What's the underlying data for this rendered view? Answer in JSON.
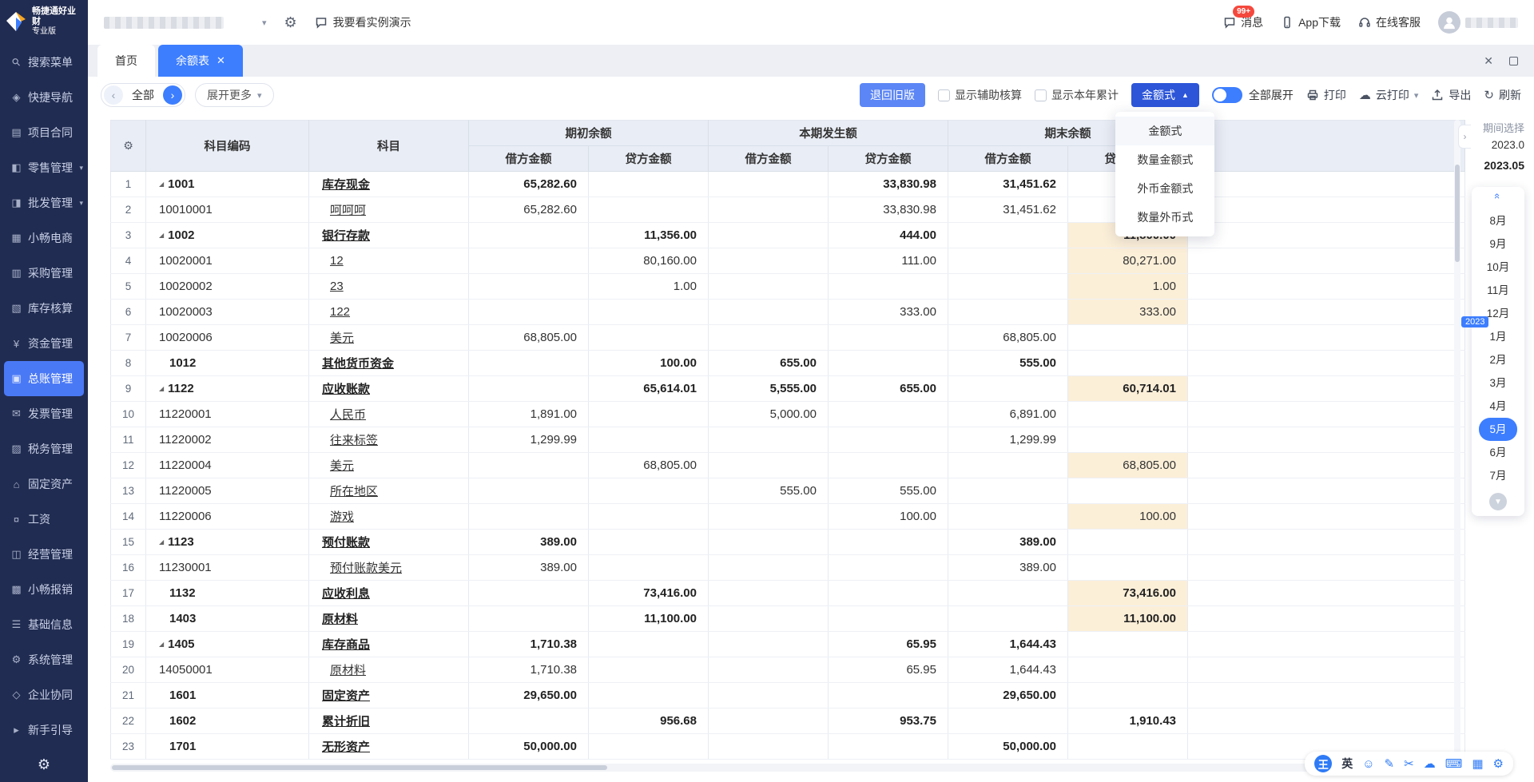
{
  "brand": {
    "name": "畅捷通好业财",
    "edition": "专业版"
  },
  "topbar": {
    "demo": "我要看实例演示",
    "messages": "消息",
    "messages_badge": "99+",
    "app_download": "App下载",
    "support": "在线客服"
  },
  "tabs": {
    "home": "首页",
    "current": "余额表"
  },
  "sidebar": {
    "items": [
      {
        "id": "search-menu",
        "label": "搜索菜单"
      },
      {
        "id": "quick-nav",
        "label": "快捷导航"
      },
      {
        "id": "project-contract",
        "label": "项目合同"
      },
      {
        "id": "retail",
        "label": "零售管理",
        "expandable": true
      },
      {
        "id": "wholesale",
        "label": "批发管理",
        "expandable": true
      },
      {
        "id": "ecommerce",
        "label": "小畅电商"
      },
      {
        "id": "purchase",
        "label": "采购管理"
      },
      {
        "id": "inventory",
        "label": "库存核算"
      },
      {
        "id": "funds",
        "label": "资金管理"
      },
      {
        "id": "general-ledger",
        "label": "总账管理",
        "active": true
      },
      {
        "id": "invoice",
        "label": "发票管理"
      },
      {
        "id": "tax",
        "label": "税务管理"
      },
      {
        "id": "fixed-assets",
        "label": "固定资产"
      },
      {
        "id": "payroll",
        "label": "工资"
      },
      {
        "id": "operations",
        "label": "经营管理"
      },
      {
        "id": "expense",
        "label": "小畅报销"
      },
      {
        "id": "basic-info",
        "label": "基础信息"
      },
      {
        "id": "system",
        "label": "系统管理"
      },
      {
        "id": "collaboration",
        "label": "企业协同"
      },
      {
        "id": "guide",
        "label": "新手引导"
      }
    ]
  },
  "toolbar": {
    "scope_all": "全部",
    "expand_more": "展开更多",
    "back_to_old": "退回旧版",
    "show_aux": "显示辅助核算",
    "show_ytd": "显示本年累计",
    "format": "金额式",
    "expand_all": "全部展开",
    "print": "打印",
    "cloud_print": "云打印",
    "export": "导出",
    "refresh": "刷新"
  },
  "format_menu": {
    "items": [
      "金额式",
      "数量金额式",
      "外币金额式",
      "数量外币式"
    ]
  },
  "period": {
    "title": "期间选择",
    "range_start": "2023.0",
    "range_end": "2023.05",
    "year_tag": "2023",
    "months": [
      "8月",
      "9月",
      "10月",
      "11月",
      "12月",
      "1月",
      "2月",
      "3月",
      "4月",
      "5月",
      "6月",
      "7月"
    ],
    "selected_month": "5月"
  },
  "table": {
    "header": {
      "code": "科目编码",
      "subject": "科目",
      "group_begin": "期初余额",
      "group_current": "本期发生额",
      "group_end": "期末余额",
      "debit": "借方金额",
      "credit": "贷方金额"
    },
    "rows": [
      {
        "num": 1,
        "code": "1001",
        "name": "库存现金",
        "parent": true,
        "expand": true,
        "vals": [
          "65,282.60",
          "",
          "",
          "33,830.98",
          "31,451.62",
          ""
        ],
        "hl": false
      },
      {
        "num": 2,
        "code": "10010001",
        "name": "呵呵呵",
        "parent": false,
        "expand": false,
        "vals": [
          "65,282.60",
          "",
          "",
          "33,830.98",
          "31,451.62",
          ""
        ],
        "hl": false
      },
      {
        "num": 3,
        "code": "1002",
        "name": "银行存款",
        "parent": true,
        "expand": true,
        "vals": [
          "",
          "11,356.00",
          "",
          "444.00",
          "",
          "11,800.00"
        ],
        "hl": true
      },
      {
        "num": 4,
        "code": "10020001",
        "name": "12",
        "parent": false,
        "expand": false,
        "vals": [
          "",
          "80,160.00",
          "",
          "111.00",
          "",
          "80,271.00"
        ],
        "hl": true
      },
      {
        "num": 5,
        "code": "10020002",
        "name": "23",
        "parent": false,
        "expand": false,
        "vals": [
          "",
          "1.00",
          "",
          "",
          "",
          "1.00"
        ],
        "hl": true
      },
      {
        "num": 6,
        "code": "10020003",
        "name": "122",
        "parent": false,
        "expand": false,
        "vals": [
          "",
          "",
          "",
          "333.00",
          "",
          "333.00"
        ],
        "hl": true
      },
      {
        "num": 7,
        "code": "10020006",
        "name": "美元",
        "parent": false,
        "expand": false,
        "vals": [
          "68,805.00",
          "",
          "",
          "",
          "68,805.00",
          ""
        ],
        "hl": false
      },
      {
        "num": 8,
        "code": "1012",
        "name": "其他货币资金",
        "parent": true,
        "expand": false,
        "vals": [
          "",
          "100.00",
          "655.00",
          "",
          "555.00",
          ""
        ],
        "hl": false
      },
      {
        "num": 9,
        "code": "1122",
        "name": "应收账款",
        "parent": true,
        "expand": true,
        "vals": [
          "",
          "65,614.01",
          "5,555.00",
          "655.00",
          "",
          "60,714.01"
        ],
        "hl": true
      },
      {
        "num": 10,
        "code": "11220001",
        "name": "人民币",
        "parent": false,
        "expand": false,
        "vals": [
          "1,891.00",
          "",
          "5,000.00",
          "",
          "6,891.00",
          ""
        ],
        "hl": false
      },
      {
        "num": 11,
        "code": "11220002",
        "name": "往来标签",
        "parent": false,
        "expand": false,
        "vals": [
          "1,299.99",
          "",
          "",
          "",
          "1,299.99",
          ""
        ],
        "hl": false
      },
      {
        "num": 12,
        "code": "11220004",
        "name": "美元",
        "parent": false,
        "expand": false,
        "vals": [
          "",
          "68,805.00",
          "",
          "",
          "",
          "68,805.00"
        ],
        "hl": true
      },
      {
        "num": 13,
        "code": "11220005",
        "name": "所在地区",
        "parent": false,
        "expand": false,
        "vals": [
          "",
          "",
          "555.00",
          "555.00",
          "",
          ""
        ],
        "hl": false
      },
      {
        "num": 14,
        "code": "11220006",
        "name": "游戏",
        "parent": false,
        "expand": false,
        "vals": [
          "",
          "",
          "",
          "100.00",
          "",
          "100.00"
        ],
        "hl": true
      },
      {
        "num": 15,
        "code": "1123",
        "name": "预付账款",
        "parent": true,
        "expand": true,
        "vals": [
          "389.00",
          "",
          "",
          "",
          "389.00",
          ""
        ],
        "hl": false
      },
      {
        "num": 16,
        "code": "11230001",
        "name": "预付账款美元",
        "parent": false,
        "expand": false,
        "vals": [
          "389.00",
          "",
          "",
          "",
          "389.00",
          ""
        ],
        "hl": false
      },
      {
        "num": 17,
        "code": "1132",
        "name": "应收利息",
        "parent": true,
        "expand": false,
        "vals": [
          "",
          "73,416.00",
          "",
          "",
          "",
          "73,416.00"
        ],
        "hl": true
      },
      {
        "num": 18,
        "code": "1403",
        "name": "原材料",
        "parent": true,
        "expand": false,
        "vals": [
          "",
          "11,100.00",
          "",
          "",
          "",
          "11,100.00"
        ],
        "hl": true
      },
      {
        "num": 19,
        "code": "1405",
        "name": "库存商品",
        "parent": true,
        "expand": true,
        "vals": [
          "1,710.38",
          "",
          "",
          "65.95",
          "1,644.43",
          ""
        ],
        "hl": false
      },
      {
        "num": 20,
        "code": "14050001",
        "name": "原材料",
        "parent": false,
        "expand": false,
        "vals": [
          "1,710.38",
          "",
          "",
          "65.95",
          "1,644.43",
          ""
        ],
        "hl": false
      },
      {
        "num": 21,
        "code": "1601",
        "name": "固定资产",
        "parent": true,
        "expand": false,
        "vals": [
          "29,650.00",
          "",
          "",
          "",
          "29,650.00",
          ""
        ],
        "hl": false
      },
      {
        "num": 22,
        "code": "1602",
        "name": "累计折旧",
        "parent": true,
        "expand": false,
        "vals": [
          "",
          "956.68",
          "",
          "953.75",
          "",
          "1,910.43"
        ],
        "hl": false
      },
      {
        "num": 23,
        "code": "1701",
        "name": "无形资产",
        "parent": true,
        "expand": false,
        "vals": [
          "50,000.00",
          "",
          "",
          "",
          "50,000.00",
          ""
        ],
        "hl": false
      }
    ]
  },
  "ime": {
    "logo": "王",
    "lang": "英"
  }
}
